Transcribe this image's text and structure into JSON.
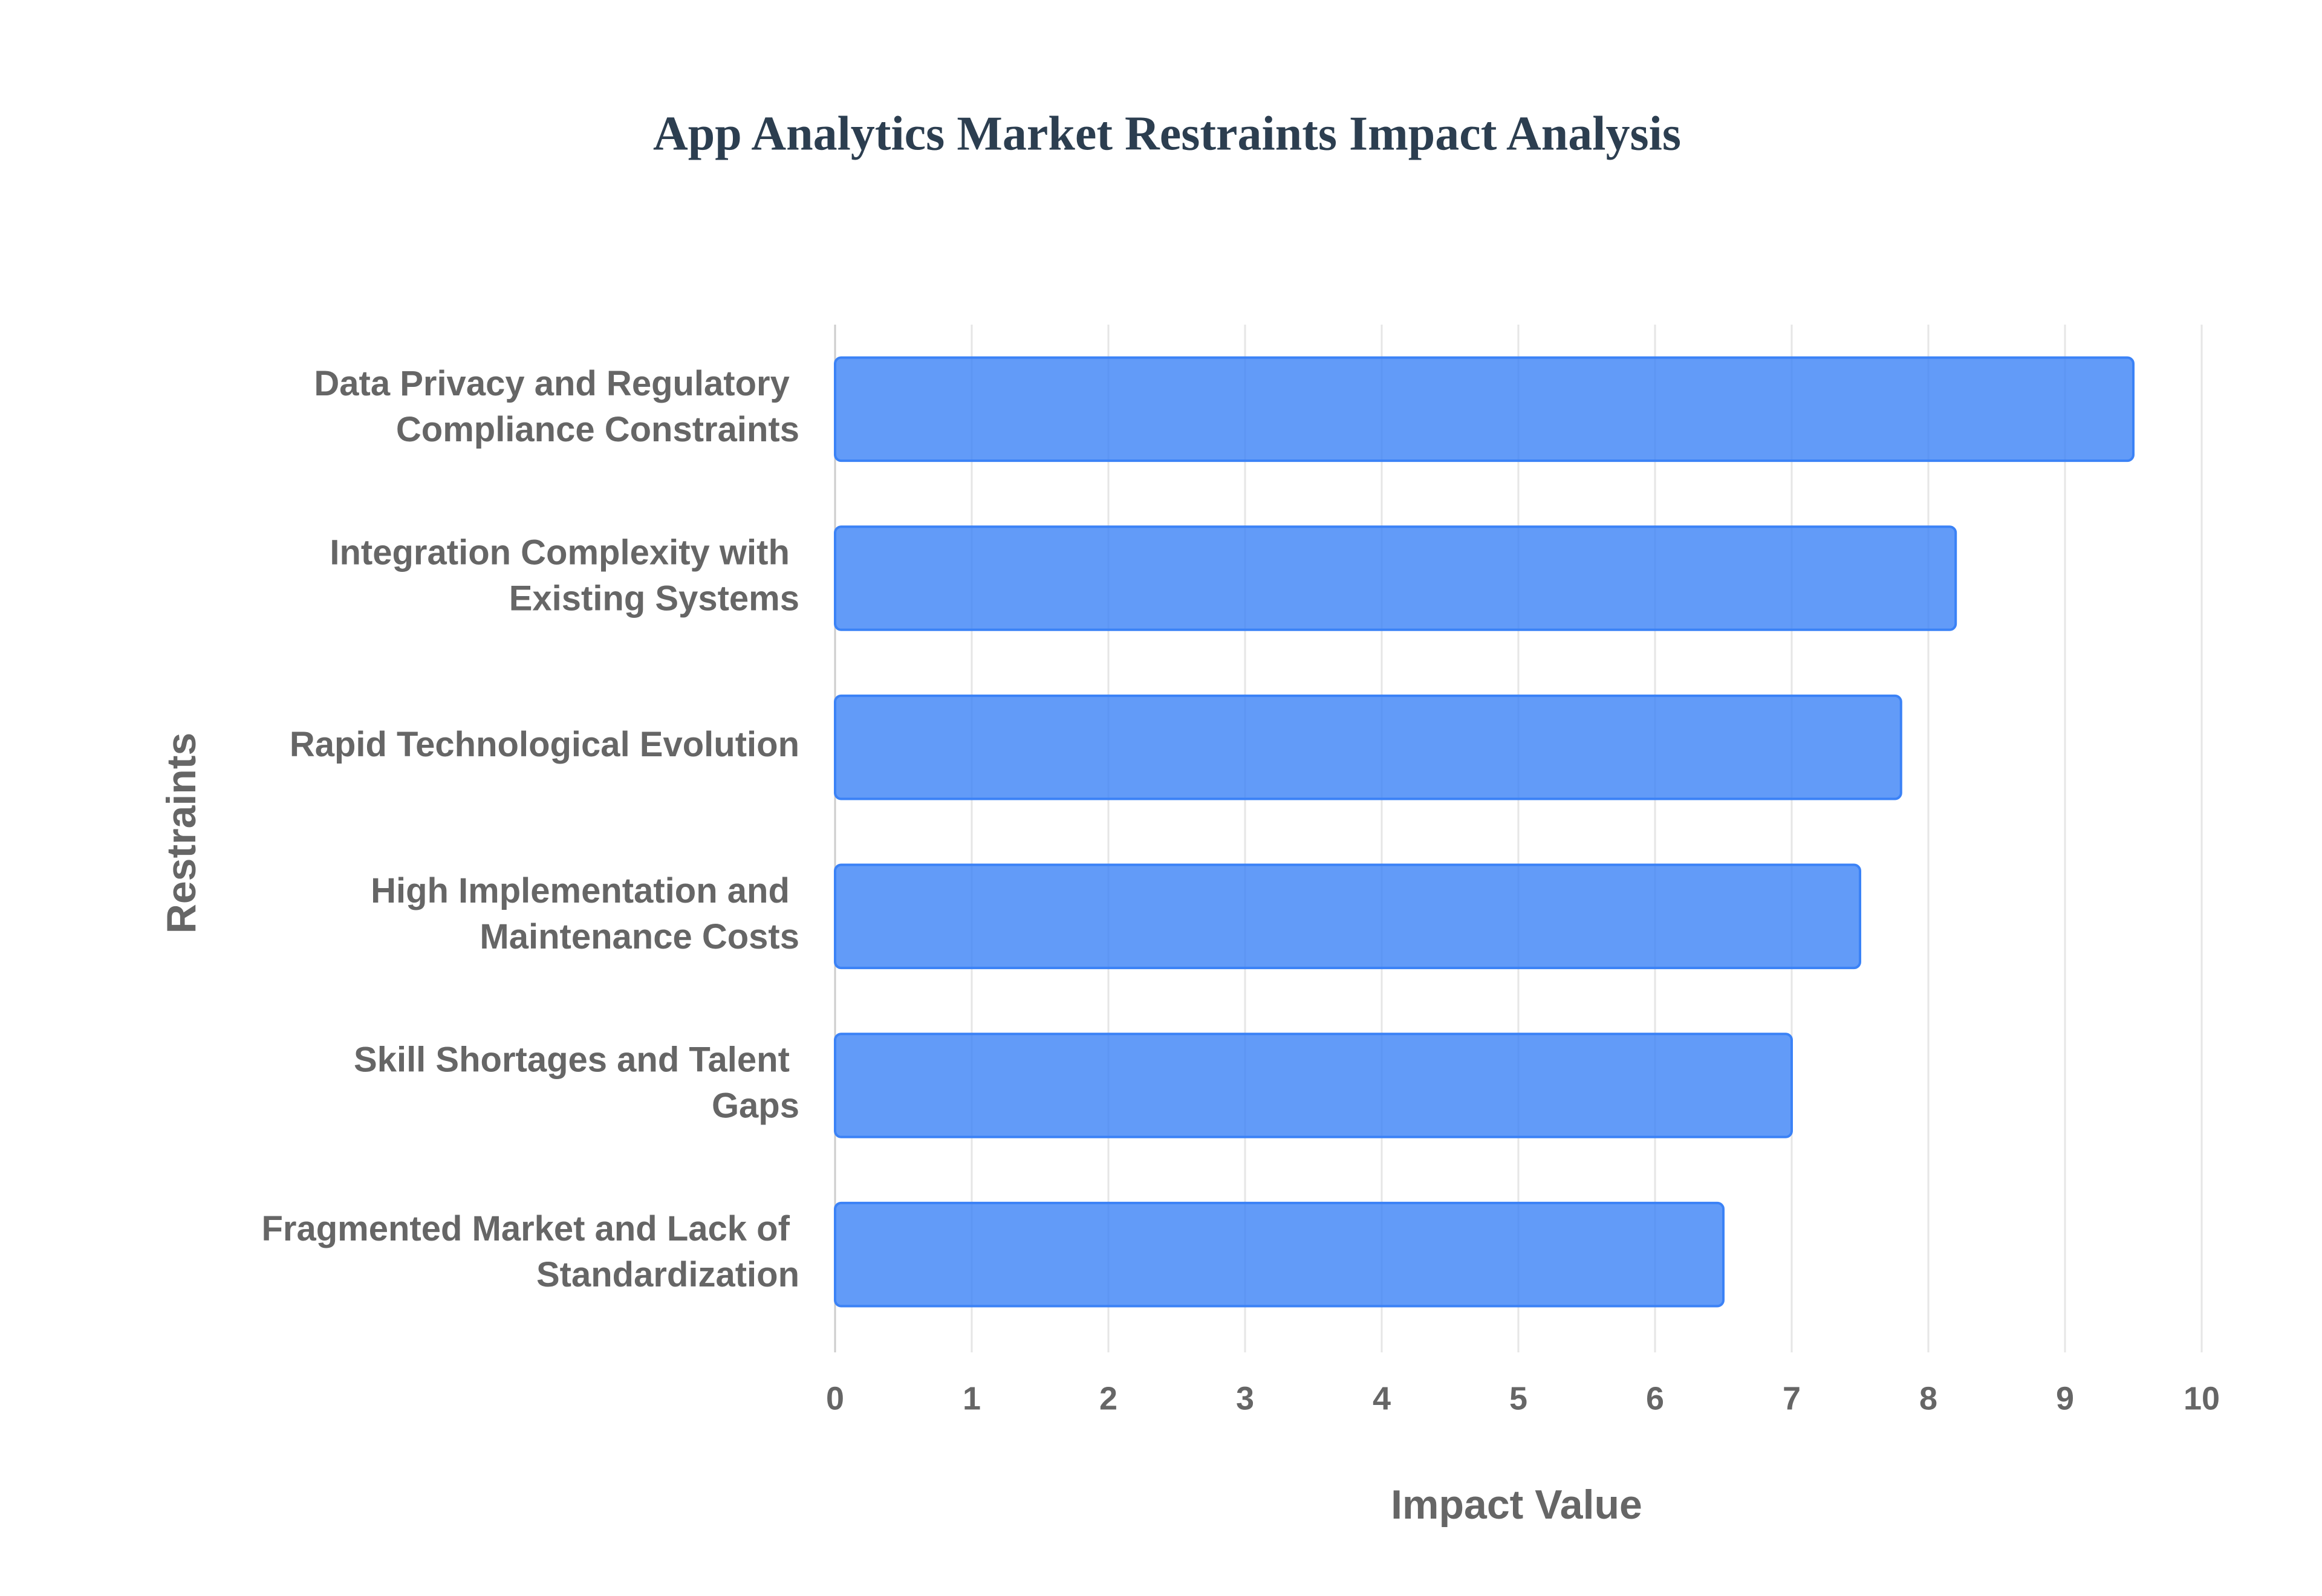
{
  "chart_data": {
    "type": "hbar",
    "title": "App Analytics Market Restraints Impact Analysis",
    "x_label": "Impact Value",
    "y_label": "Restraints",
    "categories": [
      "Data Privacy and Regulatory Compliance Constraints",
      "Integration Complexity with Existing Systems",
      "Rapid Technological Evolution",
      "High Implementation and Maintenance Costs",
      "Skill Shortages and Talent Gaps",
      "Fragmented Market and Lack of Standardization"
    ],
    "values": [
      9.5,
      8.2,
      7.8,
      7.5,
      7.0,
      6.5
    ],
    "color": "#3b82f6",
    "xlim": [
      0,
      10
    ],
    "xticks": [
      0,
      1,
      2,
      3,
      4,
      5,
      6,
      7,
      8,
      9,
      10
    ],
    "grid": true
  }
}
